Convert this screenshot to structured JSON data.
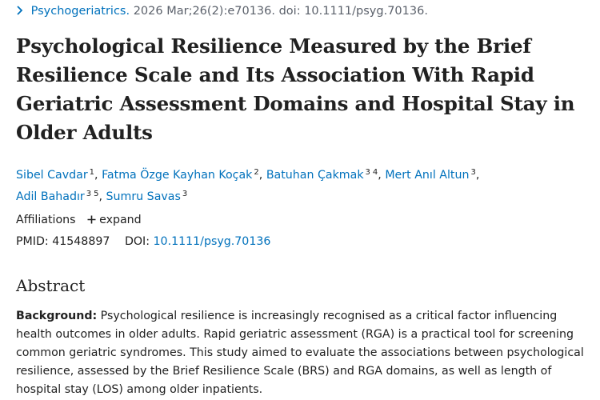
{
  "citation": {
    "journal": "Psychogeriatrics.",
    "details": " 2026 Mar;26(2):e70136. doi: 10.1111/psyg.70136."
  },
  "article": {
    "title": "Psychological Resilience Measured by the Brief Resilience Scale and Its Association With Rapid Geriatric Assessment Domains and Hospital Stay in Older Adults"
  },
  "authors": [
    {
      "name": "Sibel Cavdar",
      "refs": "1"
    },
    {
      "name": "Fatma Özge Kayhan Koçak",
      "refs": "2"
    },
    {
      "name": "Batuhan Çakmak",
      "refs": [
        "3",
        "4"
      ]
    },
    {
      "name": "Mert Anıl Altun",
      "refs": "3"
    },
    {
      "name": "Adil Bahadır",
      "refs": [
        "3",
        "5"
      ]
    },
    {
      "name": "Sumru Savas",
      "refs": "3"
    }
  ],
  "affiliations": {
    "label": "Affiliations",
    "expand_label": "expand"
  },
  "identifiers": {
    "pmid_label": "PMID:",
    "pmid": "41548897",
    "doi_label": "DOI:",
    "doi": "10.1111/psyg.70136"
  },
  "abstract": {
    "heading": "Abstract",
    "background_label": "Background:",
    "background_text": " Psychological resilience is increasingly recognised as a critical factor influencing health outcomes in older adults. Rapid geriatric assessment (RGA) is a practical tool for screening common geriatric syndromes. This study aimed to evaluate the associations between psychological resilience, assessed by the Brief Resilience Scale (BRS) and RGA domains, as well as length of hospital stay (LOS) among older inpatients."
  },
  "icons": {
    "breadcrumb": "chevron-right-icon",
    "expand": "plus-icon"
  },
  "colors": {
    "link": "#0071bc",
    "text": "#212121"
  }
}
